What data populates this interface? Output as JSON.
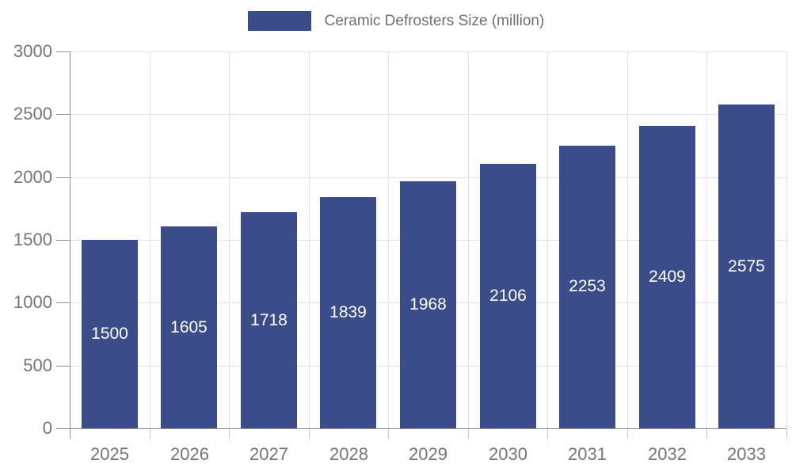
{
  "legend": {
    "label": "Ceramic Defrosters Size (million)"
  },
  "chart_data": {
    "type": "bar",
    "title": "Ceramic Defrosters Size (million)",
    "categories": [
      "2025",
      "2026",
      "2027",
      "2028",
      "2029",
      "2030",
      "2031",
      "2032",
      "2033"
    ],
    "values": [
      1500,
      1605,
      1718,
      1839,
      1968,
      2106,
      2253,
      2409,
      2575
    ],
    "xlabel": "",
    "ylabel": "",
    "ylim": [
      0,
      3000
    ],
    "yticks": [
      0,
      500,
      1000,
      1500,
      2000,
      2500,
      3000
    ],
    "grid": true,
    "legend_position": "top",
    "value_labels": "inside-center",
    "colors": {
      "bar": "#3A4C8A",
      "value_label": "#ffffff",
      "grid": "#e2e2e2",
      "axis": "#909090",
      "tick_label": "#757575",
      "legend_text": "#6e6e6e",
      "background": "#ffffff"
    }
  }
}
